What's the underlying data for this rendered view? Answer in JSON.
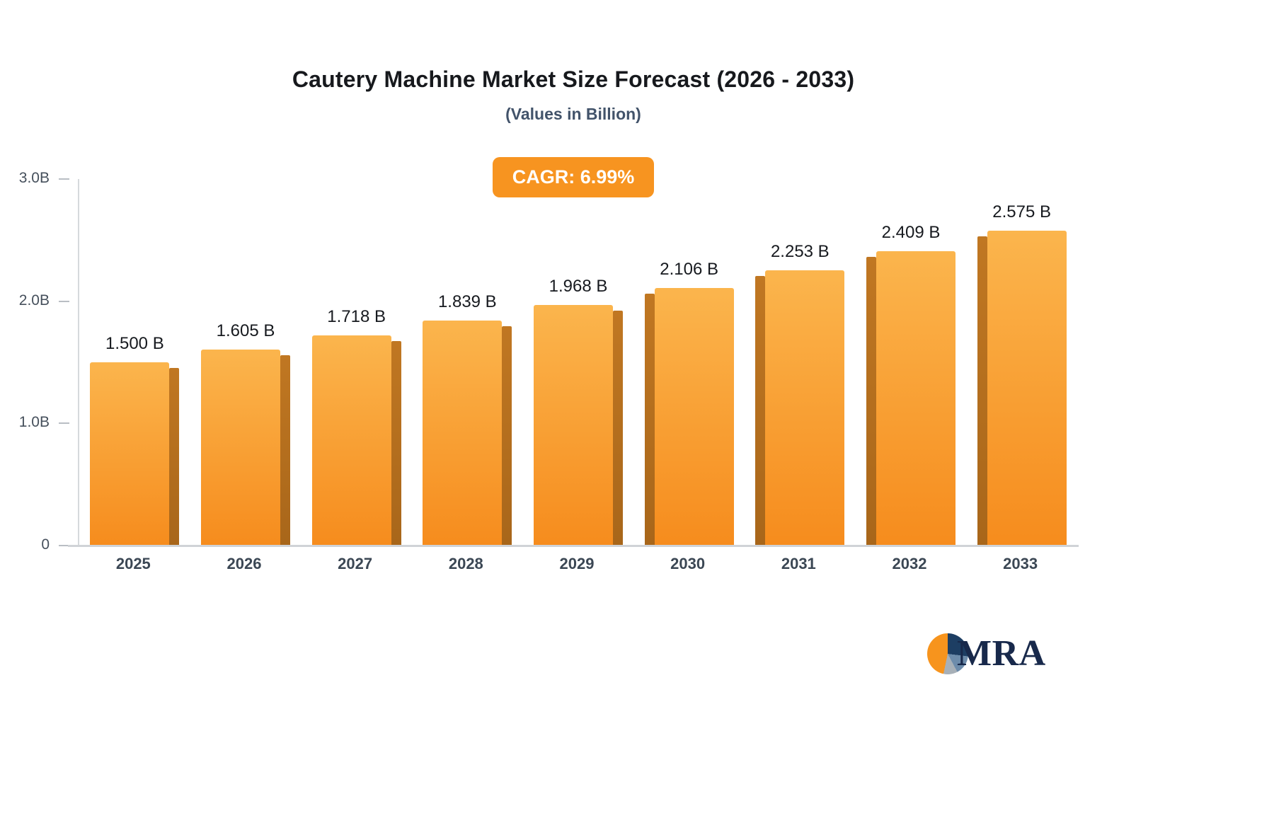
{
  "badge": {
    "label": "CAGR: 6.99%"
  },
  "logo": {
    "text": "MRA"
  },
  "colors": {
    "bar_front_top": "#fbb54d",
    "bar_front_bottom": "#f68c1d",
    "bar_side": "#c07722",
    "bar_side_bottom": "#a8661a",
    "badge_bg": "#f79420",
    "axis": "#d0d3d7"
  },
  "chart_data": {
    "type": "bar",
    "title": "Cautery Machine Market Size Forecast (2026 - 2033)",
    "subtitle": "(Values in Billion)",
    "categories": [
      "2025",
      "2026",
      "2027",
      "2028",
      "2029",
      "2030",
      "2031",
      "2032",
      "2033"
    ],
    "values": [
      1.5,
      1.605,
      1.718,
      1.839,
      1.968,
      2.106,
      2.253,
      2.409,
      2.575
    ],
    "value_labels": [
      "1.500 B",
      "1.605 B",
      "1.718 B",
      "1.839 B",
      "1.968 B",
      "2.106 B",
      "2.253 B",
      "2.409 B",
      "2.575 B"
    ],
    "xlabel": "",
    "ylabel": "",
    "ylim": [
      0,
      3.0
    ],
    "yticks": [
      {
        "value": 3.0,
        "label": "3.0B"
      },
      {
        "value": 2.0,
        "label": "2.0B"
      },
      {
        "value": 1.0,
        "label": "1.0B"
      },
      {
        "value": 0,
        "label": "0"
      }
    ],
    "grid": false,
    "legend": false,
    "annotation": "CAGR: 6.99%"
  }
}
